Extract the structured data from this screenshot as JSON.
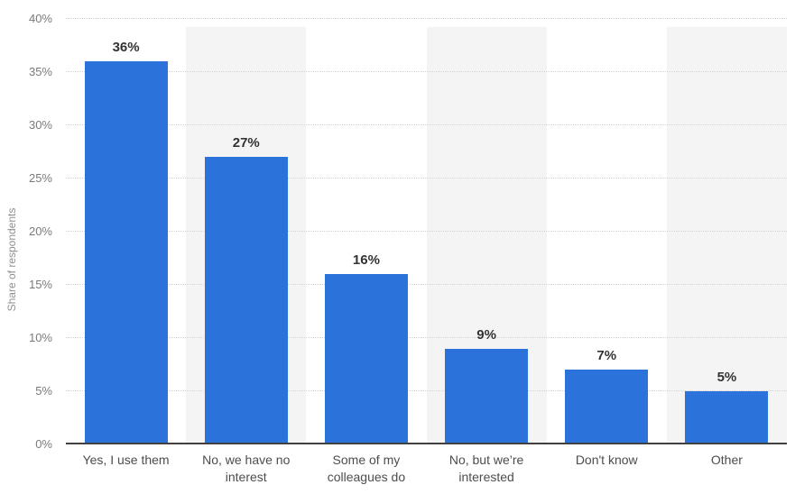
{
  "chart_data": {
    "type": "bar",
    "categories": [
      "Yes, I use them",
      "No, we have no interest",
      "Some of my colleagues do",
      "No, but we’re interested",
      "Don't know",
      "Other"
    ],
    "values": [
      36,
      27,
      16,
      9,
      7,
      5
    ],
    "value_labels": [
      "36%",
      "27%",
      "16%",
      "9%",
      "7%",
      "5%"
    ],
    "title": "",
    "xlabel": "",
    "ylabel": "Share of respondents",
    "ylim": [
      0,
      40
    ],
    "ytick_step": 5,
    "ytick_labels": [
      "0%",
      "5%",
      "10%",
      "15%",
      "20%",
      "25%",
      "30%",
      "35%",
      "40%"
    ],
    "grid": "horizontal-dotted",
    "legend": "none",
    "band_columns": "alternating, columns 2/4/6 shaded",
    "colors": {
      "bar": "#2b73da",
      "band": "#f4f4f5",
      "gridline": "#d2d2d2",
      "axis_line": "#404040",
      "tick_text": "#7a7a7a",
      "value_text": "#333333",
      "category_text": "#4d4d4d",
      "ylabel_text": "#909090",
      "background": "#ffffff"
    }
  }
}
